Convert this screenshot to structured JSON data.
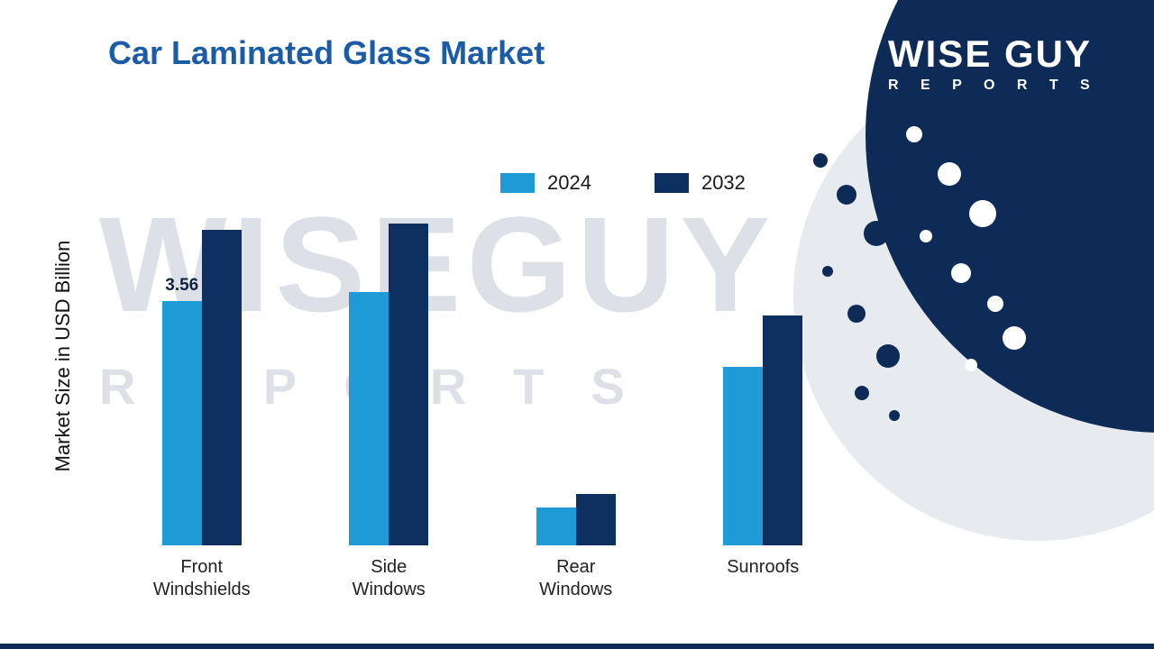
{
  "title": "Car Laminated Glass Market",
  "logo": {
    "name": "WISE GUY",
    "subtitle": "R E P O R T S"
  },
  "watermark": {
    "line1": "WISEGUY",
    "line2": "REPORTS"
  },
  "colors": {
    "title_blue": "#1a5ca8",
    "series_2024": "#1e9bd7",
    "series_2032": "#0e3060",
    "logo_navy": "#0d2b56",
    "watermark_gray": "#dde1e7"
  },
  "chart_data": {
    "type": "bar",
    "title": "Car Laminated Glass Market",
    "xlabel": "",
    "ylabel": "Market Size in USD Billion",
    "ylim": [
      0,
      5
    ],
    "grid": false,
    "legend_position": "top",
    "categories": [
      "Front Windshields",
      "Side Windows",
      "Rear Windows",
      "Sunroofs"
    ],
    "series": [
      {
        "name": "2024",
        "color": "#1e9bd7",
        "values": [
          3.56,
          3.7,
          0.55,
          2.6
        ]
      },
      {
        "name": "2032",
        "color": "#0e3060",
        "values": [
          4.6,
          4.7,
          0.75,
          3.35
        ]
      }
    ],
    "data_labels": [
      {
        "series": "2024",
        "category": "Front Windshields",
        "text": "3.56"
      }
    ]
  }
}
